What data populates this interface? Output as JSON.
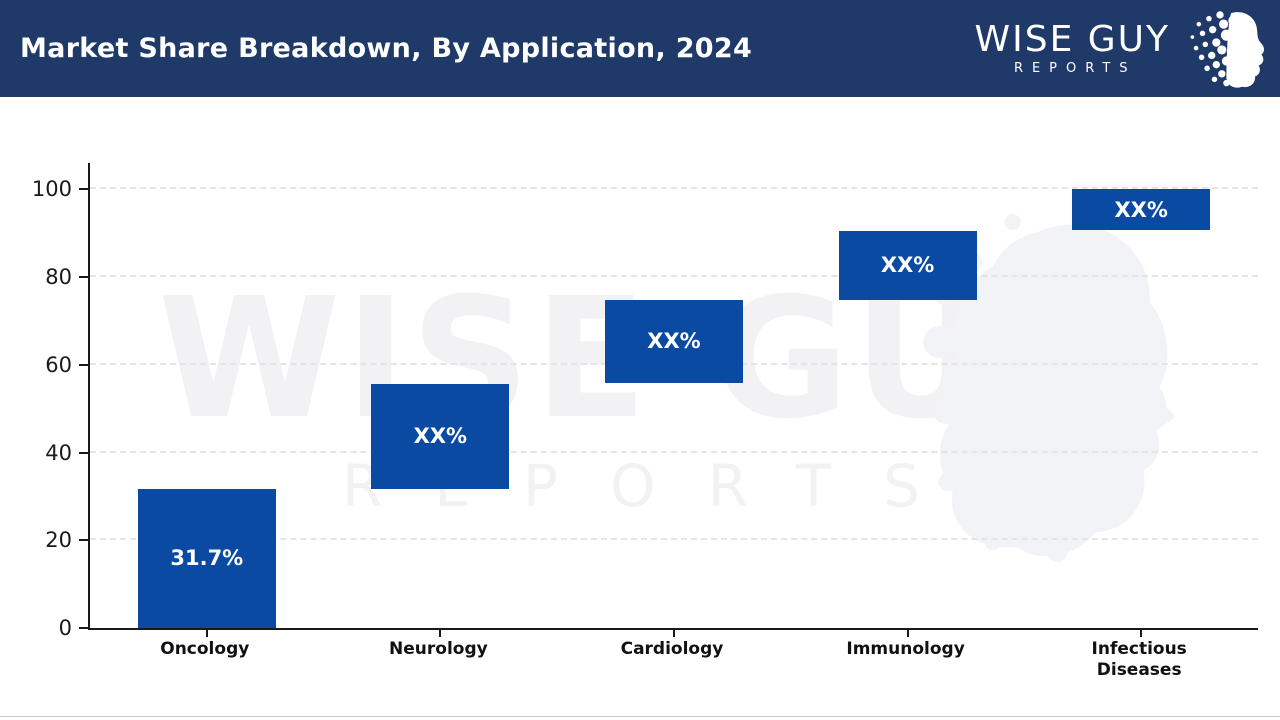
{
  "header": {
    "title": "Market Share Breakdown, By Application, 2024",
    "logo": {
      "line1": "WISE GUY",
      "line2": "REPORTS"
    }
  },
  "watermark": {
    "line1": "WISE GUY",
    "line2": "REPORTS"
  },
  "colors": {
    "header_bg": "#1F3A68",
    "bar": "#0B4AA2",
    "grid": "#E4E4E6",
    "axis": "#1A1A1A",
    "value_label": "#FFFFFF",
    "watermark": "#F2F2F5"
  },
  "chart_data": {
    "type": "bar",
    "subtype": "waterfall",
    "title": "Market Share Breakdown, By Application, 2024",
    "categories": [
      "Oncology",
      "Neurology",
      "Cardiology",
      "Immunology",
      "Infectious Diseases"
    ],
    "segments": [
      {
        "category": "Oncology",
        "start": 0,
        "end": 31.7,
        "label": "31.7%"
      },
      {
        "category": "Neurology",
        "start": 31.8,
        "end": 55.7,
        "label": "XX%"
      },
      {
        "category": "Cardiology",
        "start": 55.9,
        "end": 74.8,
        "label": "XX%"
      },
      {
        "category": "Immunology",
        "start": 74.8,
        "end": 90.5,
        "label": "XX%"
      },
      {
        "category": "Infectious Diseases",
        "start": 90.7,
        "end": 100,
        "label": "XX%"
      }
    ],
    "xlabel": "",
    "ylabel": "",
    "yticks": [
      0,
      20,
      40,
      60,
      80,
      100
    ],
    "ylim": [
      0,
      106
    ],
    "grid": "horizontal-dashed",
    "legend": "none",
    "bar_color": "#0B4AA2",
    "value_label_color": "#FFFFFF"
  }
}
